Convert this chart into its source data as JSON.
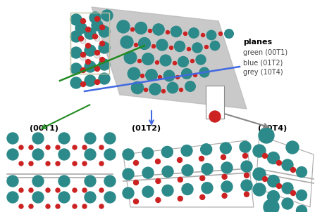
{
  "background_color": "#ffffff",
  "teal_color": "#2d8a8a",
  "red_color": "#cc2222",
  "white_color": "#e8e8e8",
  "grey_plane_color": "#b8b8b8",
  "legend_title": "planes",
  "legend_items": [
    "green (00T1)",
    "blue (01T2)",
    "grey (10T4)"
  ],
  "label_00T1": "(00T1)",
  "label_01T2": "(01T2)",
  "label_10T4": "(10T4)",
  "green_color": "#228B22",
  "blue_color": "#4169E1",
  "grey_arrow_color": "#888888",
  "figsize": [
    4.74,
    3.02
  ],
  "dpi": 100
}
